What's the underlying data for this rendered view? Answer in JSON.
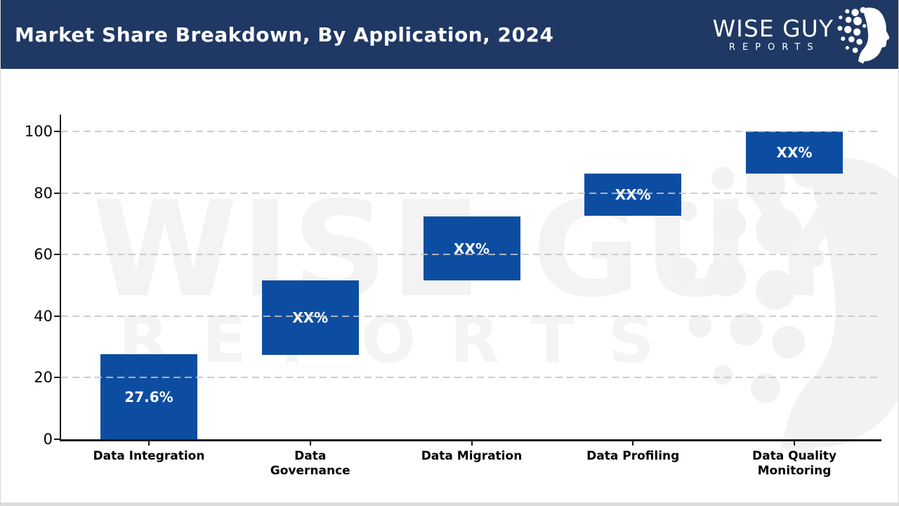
{
  "header": {
    "title": "Market Share Breakdown, By Application, 2024",
    "bg_color": "#1f3864"
  },
  "logo": {
    "name": "WISE GUY",
    "subtitle": "REPORTS"
  },
  "watermark": {
    "line1": "WISE GUY",
    "line2": "REPORTS"
  },
  "chart_data": {
    "type": "bar",
    "subtype": "waterfall",
    "title": "Market Share Breakdown, By Application, 2024",
    "categories": [
      "Data Integration",
      "Data Governance",
      "Data Migration",
      "Data Profiling",
      "Data Quality Monitoring"
    ],
    "bars": [
      {
        "category": "Data Integration",
        "start": 0,
        "end": 27.6,
        "label": "27.6%"
      },
      {
        "category": "Data Governance",
        "start": 27.5,
        "end": 51.6,
        "label": "XX%"
      },
      {
        "category": "Data Migration",
        "start": 51.6,
        "end": 72.4,
        "label": "XX%"
      },
      {
        "category": "Data Profiling",
        "start": 72.6,
        "end": 86.3,
        "label": "XX%"
      },
      {
        "category": "Data Quality Monitoring",
        "start": 86.3,
        "end": 100,
        "label": "XX%"
      }
    ],
    "xlabel": "",
    "ylabel": "",
    "ylim": [
      0,
      100
    ],
    "yticks": [
      0,
      20,
      40,
      60,
      80,
      100
    ],
    "bar_color": "#0d4da1",
    "value_label_color": "#ffffff",
    "grid": {
      "axis": "y",
      "style": "dashed",
      "color": "#d6d6d6",
      "above_bars": true
    },
    "legend": false
  }
}
